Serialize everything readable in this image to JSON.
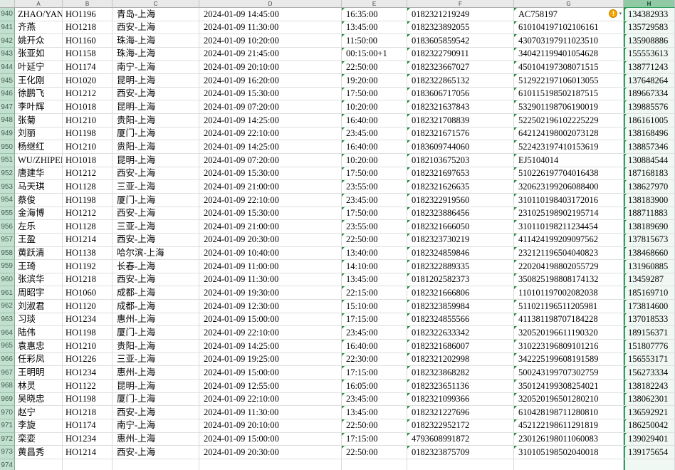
{
  "sheet": {
    "columns": [
      "A",
      "B",
      "C",
      "D",
      "E",
      "F",
      "G",
      "H"
    ],
    "selected_column": "H",
    "accent_green": "#2f9e5f",
    "warning_color": "#f7a600",
    "warning_label": "!",
    "warning_caret": "▾",
    "rows": [
      {
        "num": "940",
        "name": "ZHAO/YAN",
        "flight": "HO1196",
        "route": "青岛-上海",
        "depart": "2024-01-09 14:45:00",
        "arrive": "16:35:00",
        "ticket": "0182321219249",
        "idnum": "AC758197",
        "phone": "134382933",
        "warning": true
      },
      {
        "num": "941",
        "name": "齐燕",
        "flight": "HO1218",
        "route": "西安-上海",
        "depart": "2024-01-09 11:30:00",
        "arrive": "13:45:00",
        "ticket": "0182323892055",
        "idnum": "610104197102106161",
        "phone": "135729583"
      },
      {
        "num": "942",
        "name": "姚开众",
        "flight": "HO1160",
        "route": "珠海-上海",
        "depart": "2024-01-09 10:20:00",
        "arrive": "11:50:00",
        "ticket": "0183605859542",
        "idnum": "430703197911023510",
        "phone": "135908886"
      },
      {
        "num": "943",
        "name": "张亚如",
        "flight": "HO1158",
        "route": "珠海-上海",
        "depart": "2024-01-09 21:45:00",
        "arrive": "00:15:00+1",
        "ticket": "0182322790911",
        "idnum": "340421199401054628",
        "phone": "155553613"
      },
      {
        "num": "944",
        "name": "叶延宁",
        "flight": "HO1174",
        "route": "南宁-上海",
        "depart": "2024-01-09 20:10:00",
        "arrive": "22:50:00",
        "ticket": "0182323667027",
        "idnum": "450104197308071515",
        "phone": "138771243"
      },
      {
        "num": "945",
        "name": "王化刚",
        "flight": "HO1020",
        "route": "昆明-上海",
        "depart": "2024-01-09 16:20:00",
        "arrive": "19:20:00",
        "ticket": "0182322865132",
        "idnum": "512922197106013055",
        "phone": "137648264"
      },
      {
        "num": "946",
        "name": "徐鹏飞",
        "flight": "HO1212",
        "route": "西安-上海",
        "depart": "2024-01-09 15:30:00",
        "arrive": "17:50:00",
        "ticket": "0183606717056",
        "idnum": "610115198502187515",
        "phone": "189667334"
      },
      {
        "num": "947",
        "name": "李叶辉",
        "flight": "HO1018",
        "route": "昆明-上海",
        "depart": "2024-01-09 07:20:00",
        "arrive": "10:20:00",
        "ticket": "0182321637843",
        "idnum": "532901198706190019",
        "phone": "139885576"
      },
      {
        "num": "948",
        "name": "张菊",
        "flight": "HO1210",
        "route": "贵阳-上海",
        "depart": "2024-01-09 14:25:00",
        "arrive": "16:40:00",
        "ticket": "0182321708839",
        "idnum": "522502196102225229",
        "phone": "186161005"
      },
      {
        "num": "949",
        "name": "刘丽",
        "flight": "HO1198",
        "route": "厦门-上海",
        "depart": "2024-01-09 22:10:00",
        "arrive": "23:45:00",
        "ticket": "0182321671576",
        "idnum": "642124198002073128",
        "phone": "138168496"
      },
      {
        "num": "950",
        "name": "杨继红",
        "flight": "HO1210",
        "route": "贵阳-上海",
        "depart": "2024-01-09 14:25:00",
        "arrive": "16:40:00",
        "ticket": "0183609744060",
        "idnum": "522423197410153619",
        "phone": "138857346"
      },
      {
        "num": "951",
        "name": "WU/ZHIPEN",
        "flight": "HO1018",
        "route": "昆明-上海",
        "depart": "2024-01-09 07:20:00",
        "arrive": "10:20:00",
        "ticket": "0182103675203",
        "idnum": "EJ5104014",
        "phone": "130884544"
      },
      {
        "num": "952",
        "name": "唐建华",
        "flight": "HO1212",
        "route": "西安-上海",
        "depart": "2024-01-09 15:30:00",
        "arrive": "17:50:00",
        "ticket": "0182321697653",
        "idnum": "510226197704016438",
        "phone": "187168183"
      },
      {
        "num": "953",
        "name": "马天琪",
        "flight": "HO1128",
        "route": "三亚-上海",
        "depart": "2024-01-09 21:00:00",
        "arrive": "23:55:00",
        "ticket": "0182321626635",
        "idnum": "320623199206088400",
        "phone": "138627970"
      },
      {
        "num": "954",
        "name": "蔡俊",
        "flight": "HO1198",
        "route": "厦门-上海",
        "depart": "2024-01-09 22:10:00",
        "arrive": "23:45:00",
        "ticket": "0182322919560",
        "idnum": "310110198403172016",
        "phone": "138183900"
      },
      {
        "num": "955",
        "name": "金海博",
        "flight": "HO1212",
        "route": "西安-上海",
        "depart": "2024-01-09 15:30:00",
        "arrive": "17:50:00",
        "ticket": "0182323886456",
        "idnum": "231025198902195714",
        "phone": "188711883"
      },
      {
        "num": "956",
        "name": "左乐",
        "flight": "HO1128",
        "route": "三亚-上海",
        "depart": "2024-01-09 21:00:00",
        "arrive": "23:55:00",
        "ticket": "0182321666050",
        "idnum": "310110198211234454",
        "phone": "138189690"
      },
      {
        "num": "957",
        "name": "王盈",
        "flight": "HO1214",
        "route": "西安-上海",
        "depart": "2024-01-09 20:30:00",
        "arrive": "22:50:00",
        "ticket": "0182323730219",
        "idnum": "411424199209097562",
        "phone": "137815673"
      },
      {
        "num": "958",
        "name": "黄跃清",
        "flight": "HO1138",
        "route": "哈尔滨-上海",
        "depart": "2024-01-09 10:40:00",
        "arrive": "13:40:00",
        "ticket": "0182324859846",
        "idnum": "232121196504040823",
        "phone": "138468660"
      },
      {
        "num": "959",
        "name": "王琦",
        "flight": "HO1192",
        "route": "长春-上海",
        "depart": "2024-01-09 11:00:00",
        "arrive": "14:10:00",
        "ticket": "0182322889335",
        "idnum": "220204198802055729",
        "phone": "131960885"
      },
      {
        "num": "960",
        "name": "张滨华",
        "flight": "HO1218",
        "route": "西安-上海",
        "depart": "2024-01-09 11:30:00",
        "arrive": "13:45:00",
        "ticket": "0181202582373",
        "idnum": "350825198808174132",
        "phone": "13459287"
      },
      {
        "num": "961",
        "name": "周昭宇",
        "flight": "HO1060",
        "route": "成都-上海",
        "depart": "2024-01-09 19:30:00",
        "arrive": "22:15:00",
        "ticket": "0182321666806",
        "idnum": "110101197002082038",
        "phone": "185169710"
      },
      {
        "num": "962",
        "name": "刘淑君",
        "flight": "HO1120",
        "route": "成都-上海",
        "depart": "2024-01-09 12:30:00",
        "arrive": "15:10:00",
        "ticket": "0182323859984",
        "idnum": "511021196511205981",
        "phone": "173814600"
      },
      {
        "num": "963",
        "name": "习琰",
        "flight": "HO1234",
        "route": "惠州-上海",
        "depart": "2024-01-09 15:00:00",
        "arrive": "17:15:00",
        "ticket": "0182324855566",
        "idnum": "411381198707184228",
        "phone": "137018533"
      },
      {
        "num": "964",
        "name": "陆伟",
        "flight": "HO1198",
        "route": "厦门-上海",
        "depart": "2024-01-09 22:10:00",
        "arrive": "23:45:00",
        "ticket": "0182322633342",
        "idnum": "320520196611190320",
        "phone": "189156371"
      },
      {
        "num": "965",
        "name": "袁惠忠",
        "flight": "HO1210",
        "route": "贵阳-上海",
        "depart": "2024-01-09 14:25:00",
        "arrive": "16:40:00",
        "ticket": "0182321686007",
        "idnum": "310223196809101216",
        "phone": "151807776"
      },
      {
        "num": "966",
        "name": "任彩凤",
        "flight": "HO1226",
        "route": "三亚-上海",
        "depart": "2024-01-09 19:25:00",
        "arrive": "22:30:00",
        "ticket": "0182321202998",
        "idnum": "342225199608191589",
        "phone": "156553171"
      },
      {
        "num": "967",
        "name": "王明明",
        "flight": "HO1234",
        "route": "惠州-上海",
        "depart": "2024-01-09 15:00:00",
        "arrive": "17:15:00",
        "ticket": "0182323868282",
        "idnum": "500243199707302759",
        "phone": "156273334"
      },
      {
        "num": "968",
        "name": "林灵",
        "flight": "HO1122",
        "route": "昆明-上海",
        "depart": "2024-01-09 12:55:00",
        "arrive": "16:05:00",
        "ticket": "0182323651136",
        "idnum": "350124199308254021",
        "phone": "138182243"
      },
      {
        "num": "969",
        "name": "吴晓忠",
        "flight": "HO1198",
        "route": "厦门-上海",
        "depart": "2024-01-09 22:10:00",
        "arrive": "23:45:00",
        "ticket": "0182321099366",
        "idnum": "320520196501280210",
        "phone": "138062301"
      },
      {
        "num": "970",
        "name": "赵宁",
        "flight": "HO1218",
        "route": "西安-上海",
        "depart": "2024-01-09 11:30:00",
        "arrive": "13:45:00",
        "ticket": "0182321227696",
        "idnum": "610428198711280810",
        "phone": "136592921"
      },
      {
        "num": "971",
        "name": "李旋",
        "flight": "HO1174",
        "route": "南宁-上海",
        "depart": "2024-01-09 20:10:00",
        "arrive": "22:50:00",
        "ticket": "0182322952172",
        "idnum": "452122198611291819",
        "phone": "186250042"
      },
      {
        "num": "972",
        "name": "栾娈",
        "flight": "HO1234",
        "route": "惠州-上海",
        "depart": "2024-01-09 15:00:00",
        "arrive": "17:15:00",
        "ticket": "4793608991872",
        "idnum": "230126198011060083",
        "phone": "139029401"
      },
      {
        "num": "973",
        "name": "黄昌秀",
        "flight": "HO1214",
        "route": "西安-上海",
        "depart": "2024-01-09 20:30:00",
        "arrive": "22:50:00",
        "ticket": "0182323875709",
        "idnum": "310105198502040018",
        "phone": "139175654"
      },
      {
        "num": "974",
        "name": "",
        "flight": "",
        "route": "",
        "depart": "",
        "arrive": "",
        "ticket": "",
        "idnum": "",
        "phone": ""
      }
    ]
  }
}
